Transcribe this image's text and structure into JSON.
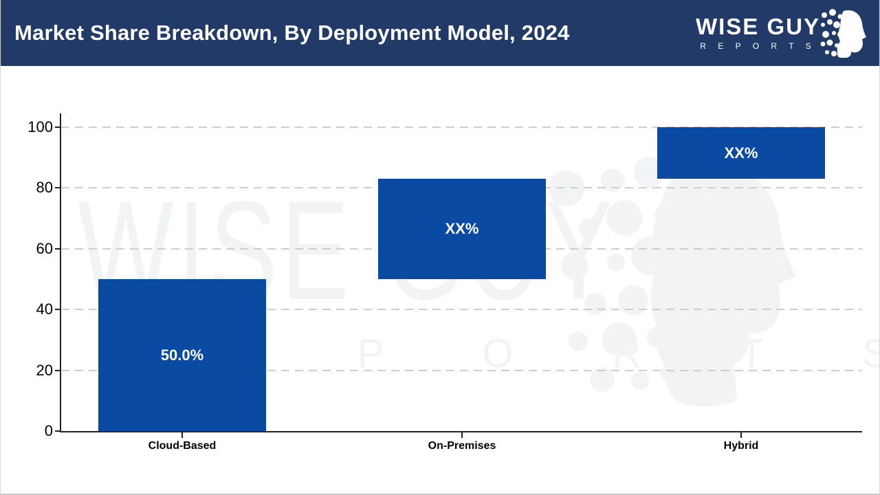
{
  "header": {
    "title": "Market Share Breakdown, By Deployment Model, 2024",
    "brand": {
      "line1": "WISE GUY",
      "line2": "R E P O R T S"
    }
  },
  "watermark": {
    "line1": "WISE GUY",
    "line2": "R E P O R T S"
  },
  "chart_data": {
    "type": "bar",
    "subtype": "floating-segment-waterfall",
    "title": "Market Share Breakdown, By Deployment Model, 2024",
    "xlabel": "",
    "ylabel": "",
    "categories": [
      "Cloud-Based",
      "On-Premises",
      "Hybrid"
    ],
    "segments": [
      {
        "category": "Cloud-Based",
        "start": 0,
        "end": 50,
        "value_label": "50.0%"
      },
      {
        "category": "On-Premises",
        "start": 50,
        "end": 83,
        "value_label": "XX%"
      },
      {
        "category": "Hybrid",
        "start": 83,
        "end": 100,
        "value_label": "XX%"
      }
    ],
    "yticks": [
      0,
      20,
      40,
      60,
      80,
      100
    ],
    "ylim": [
      0,
      105
    ],
    "grid": "horizontal-dashed",
    "legend": "none"
  },
  "colors": {
    "header_bg": "#213a67",
    "bar_fill": "#0b4aa2",
    "bar_label": "#ffffff",
    "gridline": "#cdcdcd",
    "axis": "#222222",
    "watermark": "#f2f3f5"
  }
}
